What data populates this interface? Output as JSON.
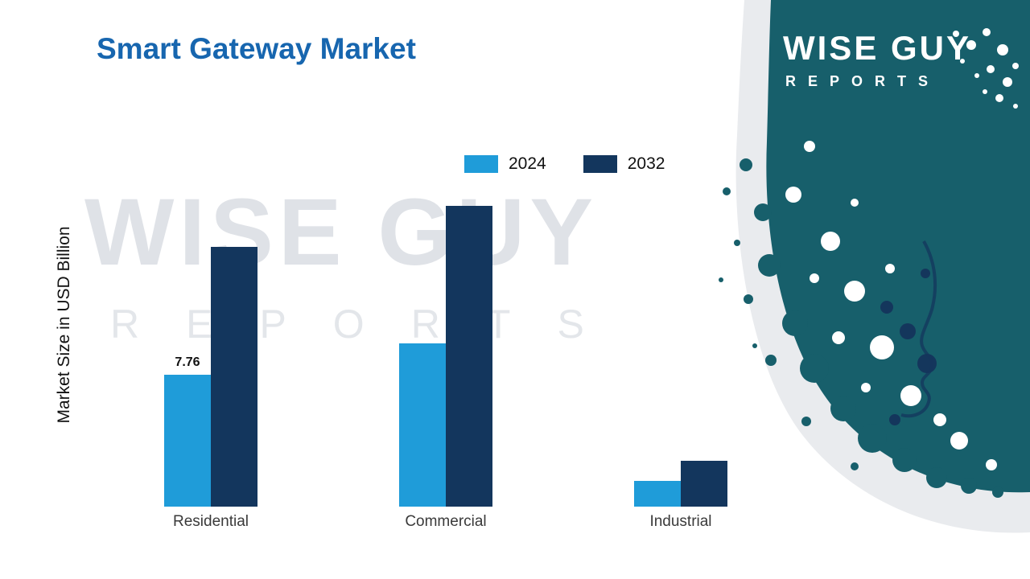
{
  "page": {
    "title": "Smart Gateway Market"
  },
  "logo": {
    "line1": "WISE GUY",
    "line2": "REPORTS"
  },
  "watermark": {
    "line1": "WISE GUY",
    "line2": "REPORTS"
  },
  "colors": {
    "title_blue": "#1766af",
    "bar_2024": "#1f9cd9",
    "bar_2032": "#13365d",
    "teal_shape": "#175f6b",
    "watermark_gray": "#dfe2e7"
  },
  "chart_data": {
    "type": "bar",
    "title": "Smart Gateway Market",
    "xlabel": "",
    "ylabel": "Market Size in USD Billion",
    "categories": [
      "Residential",
      "Commercial",
      "Industrial"
    ],
    "series": [
      {
        "name": "2024",
        "color": "#1f9cd9",
        "values": [
          7.76,
          9.6,
          1.5
        ]
      },
      {
        "name": "2032",
        "color": "#13365d",
        "values": [
          15.3,
          17.7,
          2.7
        ]
      }
    ],
    "annotations": [
      {
        "series_index": 0,
        "category_index": 0,
        "text": "7.76"
      }
    ],
    "ylim": [
      0,
      18
    ],
    "grid": false,
    "legend_position": "top"
  }
}
